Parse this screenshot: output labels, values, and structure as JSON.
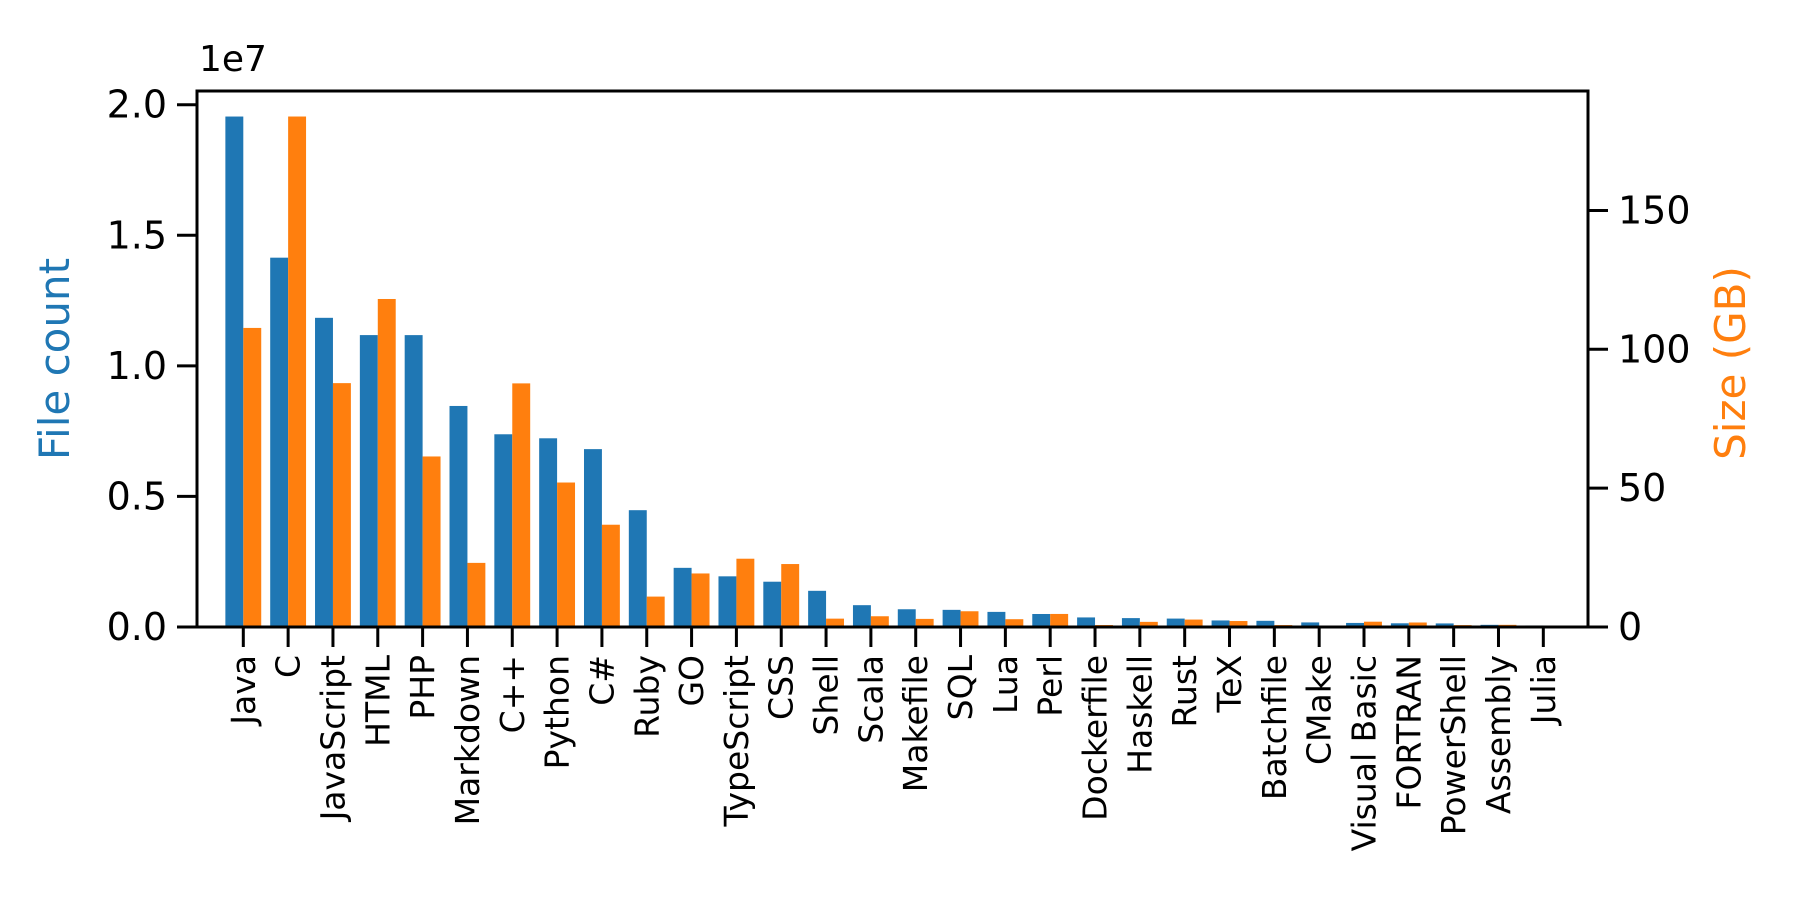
{
  "chart_data": {
    "type": "bar",
    "title": "",
    "xlabel": "",
    "grid": false,
    "legend": "none",
    "categories": [
      "Java",
      "C",
      "JavaScript",
      "HTML",
      "PHP",
      "Markdown",
      "C++",
      "Python",
      "C#",
      "Ruby",
      "GO",
      "TypeScript",
      "CSS",
      "Shell",
      "Scala",
      "Makefile",
      "SQL",
      "Lua",
      "Perl",
      "Dockerfile",
      "Haskell",
      "Rust",
      "TeX",
      "Batchfile",
      "CMake",
      "Visual Basic",
      "FORTRAN",
      "PowerShell",
      "Assembly",
      "Julia"
    ],
    "series": [
      {
        "name": "File count",
        "axis": "left",
        "color": "#1f77b4",
        "values": [
          19548190,
          14143113,
          11839883,
          11178557,
          11177610,
          8464626,
          7380520,
          7226626,
          6811652,
          4473331,
          2265436,
          1940406,
          1734406,
          1385648,
          835755,
          679430,
          656671,
          578554,
          497949,
          366505,
          340623,
          322431,
          251015,
          236945,
          175282,
          155652,
          142038,
          136846,
          82905,
          58317
        ]
      },
      {
        "name": "Size (GB)",
        "axis": "right",
        "color": "#ff7f0e",
        "values": [
          107.7,
          183.83,
          87.82,
          118.12,
          61.41,
          23.09,
          87.73,
          52.03,
          36.83,
          10.95,
          19.28,
          24.59,
          22.67,
          3.01,
          3.87,
          2.92,
          5.67,
          2.81,
          4.7,
          0.71,
          1.85,
          2.68,
          2.15,
          0.7,
          0.54,
          1.91,
          1.62,
          0.69,
          0.78,
          0.29
        ]
      }
    ],
    "left_axis": {
      "label": "File count",
      "color": "#1f77b4",
      "offset_text": "1e7",
      "tick_labels": [
        "0.0",
        "0.5",
        "1.0",
        "1.5",
        "2.0"
      ],
      "tick_values": [
        0,
        5000000,
        10000000,
        15000000,
        20000000
      ],
      "max": 20526000
    },
    "right_axis": {
      "label": "Size (GB)",
      "color": "#ff7f0e",
      "tick_labels": [
        "0",
        "50",
        "100",
        "150"
      ],
      "tick_values": [
        0,
        50,
        100,
        150
      ],
      "max": 193.02
    }
  }
}
